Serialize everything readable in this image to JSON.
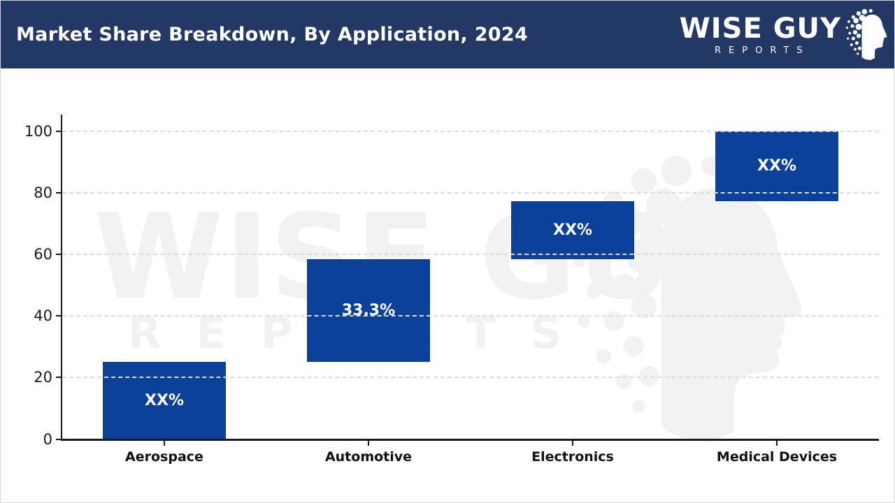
{
  "header": {
    "title": "Market Share Breakdown, By Application, 2024",
    "logo": {
      "line1": "WISE GUY",
      "line2": "REPORTS"
    }
  },
  "watermark": {
    "line1": "WISE GUY",
    "line2": "REPORTS"
  },
  "colors": {
    "header_bg": "#233864",
    "bar": "#0c4199",
    "bar_label": "#ffffff",
    "grid": "#dcdcdc",
    "axis": "#1a1a1a",
    "watermark": "#f2f2f2"
  },
  "chart_data": {
    "type": "bar",
    "variant": "waterfall",
    "title": "Market Share Breakdown, By Application, 2024",
    "categories": [
      "Aerospace",
      "Automotive",
      "Electronics",
      "Medical Devices"
    ],
    "segments": [
      {
        "category": "Aerospace",
        "start": 0,
        "end": 25,
        "value": 25,
        "label": "XX%"
      },
      {
        "category": "Automotive",
        "start": 25,
        "end": 58.3,
        "value": 33.3,
        "label": "33.3%"
      },
      {
        "category": "Electronics",
        "start": 58.3,
        "end": 77.3,
        "value": 19,
        "label": "XX%"
      },
      {
        "category": "Medical Devices",
        "start": 77.3,
        "end": 100,
        "value": 22.7,
        "label": "XX%"
      }
    ],
    "yticks": [
      0,
      20,
      40,
      60,
      80,
      100
    ],
    "ylim": [
      0,
      105
    ],
    "xlabel": "",
    "ylabel": "",
    "grid": "horizontal-dashed-above-bars",
    "legend": null,
    "bar_color": "#0c4199",
    "bar_label_color": "#ffffff"
  }
}
